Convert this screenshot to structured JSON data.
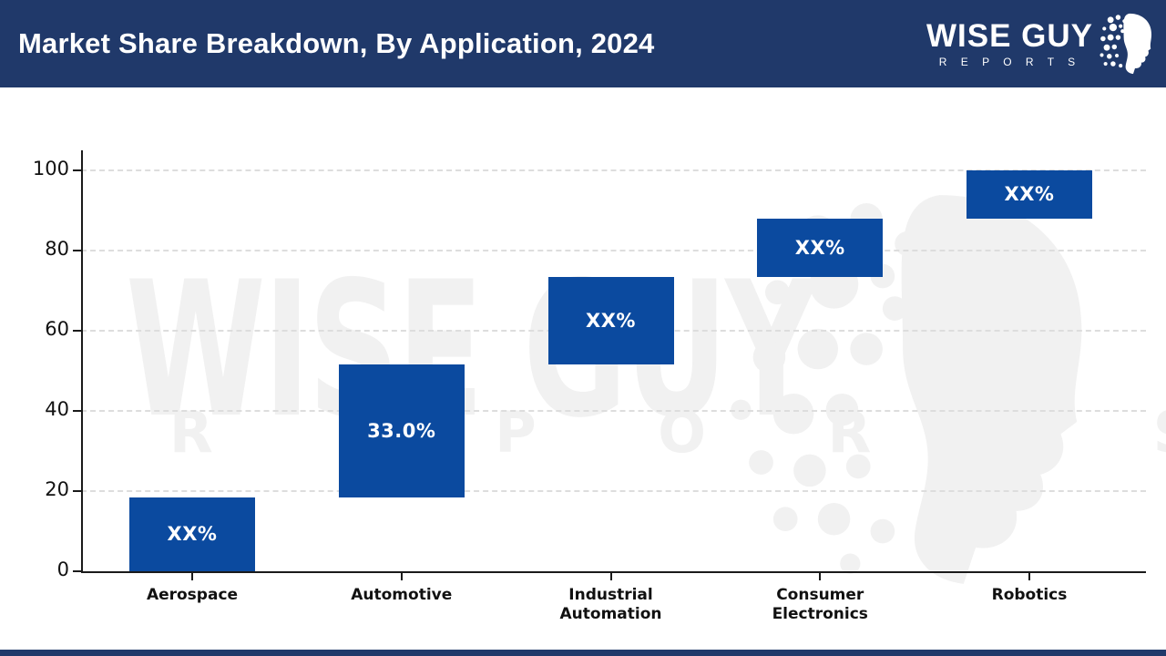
{
  "header": {
    "title": "Market Share Breakdown, By Application, 2024",
    "bg_color": "#20396a",
    "logo": {
      "wordmark": "WISE GUY",
      "subtext": "R E P O R T S"
    }
  },
  "watermark": {
    "wordmark": "WISE GUY",
    "subtext": "R E P O R T S"
  },
  "chart_data": {
    "type": "bar",
    "subtype": "waterfall",
    "title": "Market Share Breakdown, By Application, 2024",
    "categories": [
      "Aerospace",
      "Automotive",
      "Industrial\nAutomation",
      "Consumer\nElectronics",
      "Robotics"
    ],
    "series": [
      {
        "name": "Market share (%)",
        "base": [
          0,
          18.5,
          51.5,
          73.5,
          88.0
        ],
        "values": [
          18.5,
          33.0,
          22.0,
          14.5,
          12.0
        ],
        "labels": [
          "XX%",
          "33.0%",
          "XX%",
          "XX%",
          "XX%"
        ]
      }
    ],
    "ylim": [
      0,
      105
    ],
    "yticks": [
      0,
      20,
      40,
      60,
      80,
      100
    ],
    "xlabel": "",
    "ylabel": "",
    "legend": "none",
    "grid": "horizontal-dashed",
    "bar_color": "#0b4a9f",
    "bar_label_color": "#ffffff",
    "axis_color": "#1a1a1a",
    "grid_color": "#dddddd"
  }
}
